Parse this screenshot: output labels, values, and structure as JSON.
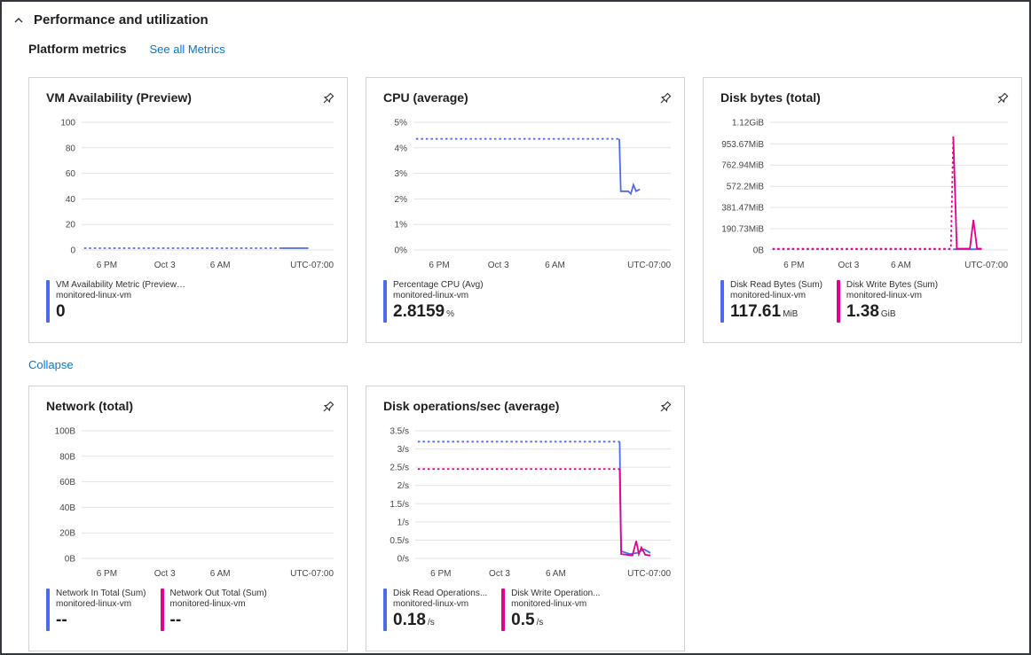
{
  "header": {
    "title": "Performance and utilization",
    "subtitle": "Platform metrics",
    "see_all_link": "See all Metrics",
    "collapse_link": "Collapse"
  },
  "colors": {
    "blue": "#4f6bed",
    "pink": "#e3008c",
    "link": "#0078d4"
  },
  "cards": [
    {
      "title": "VM Availability (Preview)",
      "legends": [
        {
          "label": "VM Availability Metric (Preview) (Min)",
          "sub": "monitored-linux-vm",
          "value": "0",
          "unit": "",
          "color": "#4f6bed"
        }
      ],
      "chart_data": {
        "type": "line",
        "ylim": [
          0,
          100
        ],
        "left_margin": 46,
        "yticks": [
          {
            "v": 100,
            "label": "100"
          },
          {
            "v": 80,
            "label": "80"
          },
          {
            "v": 60,
            "label": "60"
          },
          {
            "v": 40,
            "label": "40"
          },
          {
            "v": 20,
            "label": "20"
          },
          {
            "v": 0,
            "label": "0"
          }
        ],
        "xticks": [
          {
            "x": 10,
            "label": "6 PM"
          },
          {
            "x": 33,
            "label": "Oct 3"
          },
          {
            "x": 55,
            "label": "6 AM"
          },
          {
            "x": 100,
            "label": "UTC-07:00",
            "anchor": "end"
          }
        ],
        "series": [
          {
            "name": "VM Availability Metric (Preview) (Min)",
            "color": "#4f6bed",
            "dotted": [
              [
                1,
                1.4
              ],
              [
                79,
                1.4
              ]
            ],
            "solid": [
              [
                79,
                1.4
              ],
              [
                90,
                1.4
              ]
            ]
          }
        ]
      }
    },
    {
      "title": "CPU (average)",
      "legends": [
        {
          "label": "Percentage CPU (Avg)",
          "sub": "monitored-linux-vm",
          "value": "2.8159",
          "unit": "%",
          "color": "#4f6bed"
        }
      ],
      "chart_data": {
        "type": "line",
        "ylim": [
          0,
          5
        ],
        "left_margin": 40,
        "yticks": [
          {
            "v": 5,
            "label": "5%"
          },
          {
            "v": 4,
            "label": "4%"
          },
          {
            "v": 3,
            "label": "3%"
          },
          {
            "v": 2,
            "label": "2%"
          },
          {
            "v": 1,
            "label": "1%"
          },
          {
            "v": 0,
            "label": "0%"
          }
        ],
        "xticks": [
          {
            "x": 10,
            "label": "6 PM"
          },
          {
            "x": 33,
            "label": "Oct 3"
          },
          {
            "x": 55,
            "label": "6 AM"
          },
          {
            "x": 100,
            "label": "UTC-07:00",
            "anchor": "end"
          }
        ],
        "series": [
          {
            "name": "Percentage CPU (Avg)",
            "color": "#4f6bed",
            "dotted": [
              [
                1,
                4.35
              ],
              [
                80,
                4.35
              ]
            ],
            "solid": [
              [
                80,
                4.35
              ],
              [
                80.6,
                2.3
              ],
              [
                83.5,
                2.3
              ],
              [
                84.5,
                2.2
              ],
              [
                85.5,
                2.55
              ],
              [
                86.5,
                2.3
              ],
              [
                88,
                2.38
              ]
            ]
          }
        ]
      }
    },
    {
      "title": "Disk bytes (total)",
      "legends": [
        {
          "label": "Disk Read Bytes (Sum)",
          "sub": "monitored-linux-vm",
          "value": "117.61",
          "unit": "MiB",
          "color": "#4f6bed"
        },
        {
          "label": "Disk Write Bytes (Sum)",
          "sub": "monitored-linux-vm",
          "value": "1.38",
          "unit": "GiB",
          "color": "#e3008c"
        }
      ],
      "chart_data": {
        "type": "line",
        "ylim": [
          0,
          1146.88
        ],
        "left_margin": 62,
        "yticks": [
          {
            "v": 1146.88,
            "label": "1.12GiB"
          },
          {
            "v": 953.67,
            "label": "953.67MiB"
          },
          {
            "v": 762.94,
            "label": "762.94MiB"
          },
          {
            "v": 572.2,
            "label": "572.2MiB"
          },
          {
            "v": 381.47,
            "label": "381.47MiB"
          },
          {
            "v": 190.73,
            "label": "190.73MiB"
          },
          {
            "v": 0,
            "label": "0B"
          }
        ],
        "xticks": [
          {
            "x": 10,
            "label": "6 PM"
          },
          {
            "x": 33,
            "label": "Oct 3"
          },
          {
            "x": 55,
            "label": "6 AM"
          },
          {
            "x": 100,
            "label": "UTC-07:00",
            "anchor": "end"
          }
        ],
        "series": [
          {
            "name": "Disk Read Bytes (Sum)",
            "color": "#4f6bed",
            "dotted": [
              [
                1,
                6
              ],
              [
                77,
                6
              ]
            ],
            "solid": [
              [
                77,
                6
              ],
              [
                89,
                6
              ]
            ]
          },
          {
            "name": "Disk Write Bytes (Sum)",
            "color": "#e3008c",
            "dotted": [
              [
                1,
                10
              ],
              [
                76,
                10
              ],
              [
                77,
                1020
              ]
            ],
            "solid": [
              [
                77,
                1020
              ],
              [
                78.5,
                12
              ],
              [
                84,
                12
              ],
              [
                85.5,
                270
              ],
              [
                87,
                12
              ],
              [
                89,
                12
              ]
            ]
          }
        ]
      }
    },
    {
      "title": "Network (total)",
      "legends": [
        {
          "label": "Network In Total (Sum)",
          "sub": "monitored-linux-vm",
          "value": "--",
          "unit": "",
          "color": "#4f6bed"
        },
        {
          "label": "Network Out Total (Sum)",
          "sub": "monitored-linux-vm",
          "value": "--",
          "unit": "",
          "color": "#e3008c"
        }
      ],
      "chart_data": {
        "type": "line",
        "ylim": [
          0,
          100
        ],
        "left_margin": 46,
        "yticks": [
          {
            "v": 100,
            "label": "100B"
          },
          {
            "v": 80,
            "label": "80B"
          },
          {
            "v": 60,
            "label": "60B"
          },
          {
            "v": 40,
            "label": "40B"
          },
          {
            "v": 20,
            "label": "20B"
          },
          {
            "v": 0,
            "label": "0B"
          }
        ],
        "xticks": [
          {
            "x": 10,
            "label": "6 PM"
          },
          {
            "x": 33,
            "label": "Oct 3"
          },
          {
            "x": 55,
            "label": "6 AM"
          },
          {
            "x": 100,
            "label": "UTC-07:00",
            "anchor": "end"
          }
        ],
        "series": []
      }
    },
    {
      "title": "Disk operations/sec (average)",
      "legends": [
        {
          "label": "Disk Read Operations...",
          "sub": "monitored-linux-vm",
          "value": "0.18",
          "unit": "/s",
          "color": "#4f6bed"
        },
        {
          "label": "Disk Write Operation...",
          "sub": "monitored-linux-vm",
          "value": "0.5",
          "unit": "/s",
          "color": "#e3008c"
        }
      ],
      "chart_data": {
        "type": "line",
        "ylim": [
          0,
          3.5
        ],
        "left_margin": 42,
        "yticks": [
          {
            "v": 3.5,
            "label": "3.5/s"
          },
          {
            "v": 3,
            "label": "3/s"
          },
          {
            "v": 2.5,
            "label": "2.5/s"
          },
          {
            "v": 2,
            "label": "2/s"
          },
          {
            "v": 1.5,
            "label": "1.5/s"
          },
          {
            "v": 1,
            "label": "1/s"
          },
          {
            "v": 0.5,
            "label": "0.5/s"
          },
          {
            "v": 0,
            "label": "0/s"
          }
        ],
        "xticks": [
          {
            "x": 10,
            "label": "6 PM"
          },
          {
            "x": 33,
            "label": "Oct 3"
          },
          {
            "x": 55,
            "label": "6 AM"
          },
          {
            "x": 100,
            "label": "UTC-07:00",
            "anchor": "end"
          }
        ],
        "series": [
          {
            "name": "Disk Read Operations...",
            "color": "#4f6bed",
            "dotted": [
              [
                1,
                3.2
              ],
              [
                80,
                3.2
              ]
            ],
            "solid": [
              [
                80,
                3.2
              ],
              [
                80.6,
                0.2
              ],
              [
                84,
                0.12
              ],
              [
                87,
                0.15
              ],
              [
                89.5,
                0.25
              ],
              [
                92,
                0.15
              ]
            ]
          },
          {
            "name": "Disk Write Operation...",
            "color": "#e3008c",
            "dotted": [
              [
                1,
                2.45
              ],
              [
                80,
                2.45
              ]
            ],
            "solid": [
              [
                80,
                2.45
              ],
              [
                80.6,
                0.12
              ],
              [
                85,
                0.08
              ],
              [
                86.5,
                0.48
              ],
              [
                87.5,
                0.12
              ],
              [
                88.5,
                0.3
              ],
              [
                90,
                0.1
              ],
              [
                92,
                0.08
              ]
            ]
          }
        ]
      }
    }
  ]
}
